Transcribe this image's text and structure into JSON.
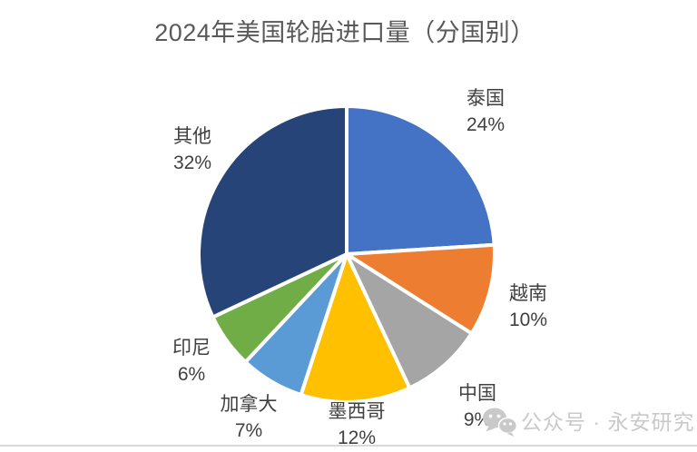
{
  "title": "2024年美国轮胎进口量（分国别）",
  "watermark": {
    "icon": "wechat-icon",
    "text": "公众号 · 永安研究"
  },
  "chart_data": {
    "type": "pie",
    "title": "2024年美国轮胎进口量（分国别）",
    "unit": "%",
    "start_angle_deg": 0,
    "direction": "clockwise",
    "legend": "none",
    "labels_position": "outside",
    "slices": [
      {
        "key": "thailand",
        "label": "泰国",
        "value": 24,
        "display": "24%",
        "color": "#4472C4"
      },
      {
        "key": "vietnam",
        "label": "越南",
        "value": 10,
        "display": "10%",
        "color": "#ED7D31"
      },
      {
        "key": "china",
        "label": "中国",
        "value": 9,
        "display": "9%",
        "color": "#A5A5A5"
      },
      {
        "key": "mexico",
        "label": "墨西哥",
        "value": 12,
        "display": "12%",
        "color": "#FFC000"
      },
      {
        "key": "canada",
        "label": "加拿大",
        "value": 7,
        "display": "7%",
        "color": "#5B9BD5"
      },
      {
        "key": "indonesia",
        "label": "印尼",
        "value": 6,
        "display": "6%",
        "color": "#70AD47"
      },
      {
        "key": "other",
        "label": "其他",
        "value": 32,
        "display": "32%",
        "color": "#264478"
      }
    ]
  },
  "colors": {
    "background": "#FFFFFF",
    "title_text": "#595959",
    "label_text": "#404040",
    "slice_border": "#FFFFFF",
    "watermark_text": "#C9C9C9",
    "divider": "#D9D9D9"
  }
}
